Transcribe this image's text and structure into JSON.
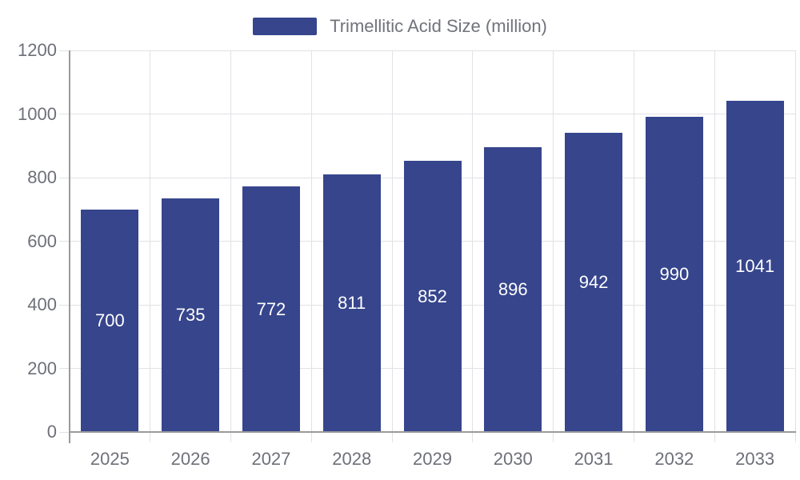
{
  "legend": {
    "label": "Trimellitic Acid Size (million)"
  },
  "colors": {
    "bar": "#36458C",
    "bar_label": "#FFFFFF",
    "axis_text": "#6E7079",
    "legend_text": "#71737A",
    "grid": "#E2E2E7",
    "axis_line": "#9A9A9E",
    "background": "#FFFFFF"
  },
  "chart_data": {
    "type": "bar",
    "title": "Trimellitic Acid Size (million)",
    "categories": [
      "2025",
      "2026",
      "2027",
      "2028",
      "2029",
      "2030",
      "2031",
      "2032",
      "2033"
    ],
    "values": [
      700,
      735,
      772,
      811,
      852,
      896,
      942,
      990,
      1041
    ],
    "xlabel": "",
    "ylabel": "",
    "ylim": [
      0,
      1200
    ],
    "ytick_interval": 200,
    "ytick_labels": [
      "0",
      "200",
      "400",
      "600",
      "800",
      "1000",
      "1200"
    ],
    "grid": true,
    "legend_position": "top",
    "bar_label_position": "center"
  }
}
